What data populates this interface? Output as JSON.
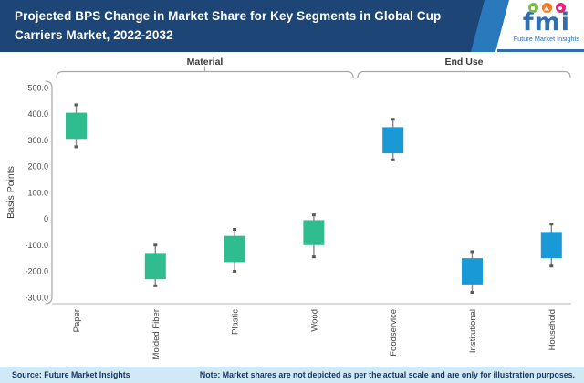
{
  "header": {
    "title_line1": "Projected BPS Change in Market Share for Key Segments in Global Cup",
    "title_line2": "Carriers Market, 2022-2032",
    "bg_color": "#1d4575",
    "accent_stripe_color": "#2b79bd",
    "logo": {
      "text": "fmi",
      "subtitle": "Future Market Insights",
      "text_color": "#2f6db5",
      "dot_colors": [
        "#7ac143",
        "#f47b20",
        "#ec1e79"
      ]
    }
  },
  "chart_data": {
    "type": "boxwhisker",
    "title": "Projected BPS Change in Market Share for Key Segments in Global Cup Carriers Market, 2022-2032",
    "xlabel": "",
    "ylabel": "Basis Points",
    "ylim": [
      -300,
      500
    ],
    "grid": "off",
    "legend": "none",
    "yticks": {
      "values": [
        500,
        400,
        300,
        200,
        100,
        0,
        -100,
        -200,
        -300
      ],
      "labels": [
        "500.0",
        "400.0",
        "300.0",
        "200.0",
        "100.0",
        "0",
        "-100.0",
        "-200.0",
        "-300.0"
      ]
    },
    "groups": [
      {
        "label": "Material",
        "color": "#2fbc8e",
        "categories": [
          "Paper",
          "Molded Fiber",
          "Plastic",
          "Wood"
        ]
      },
      {
        "label": "End Use",
        "color": "#199ad6",
        "categories": [
          "Foodservice",
          "Institutional",
          "Household"
        ]
      }
    ],
    "points": [
      {
        "category": "Paper",
        "group": "Material",
        "low": 275,
        "box_bottom": 305,
        "box_top": 405,
        "high": 435
      },
      {
        "category": "Molded Fiber",
        "group": "Material",
        "low": -255,
        "box_bottom": -230,
        "box_top": -130,
        "high": -100
      },
      {
        "category": "Plastic",
        "group": "Material",
        "low": -200,
        "box_bottom": -165,
        "box_top": -65,
        "high": -40
      },
      {
        "category": "Wood",
        "group": "Material",
        "low": -145,
        "box_bottom": -100,
        "box_top": -5,
        "high": 15
      },
      {
        "category": "Foodservice",
        "group": "End Use",
        "low": 225,
        "box_bottom": 250,
        "box_top": 350,
        "high": 380
      },
      {
        "category": "Institutional",
        "group": "End Use",
        "low": -280,
        "box_bottom": -250,
        "box_top": -150,
        "high": -125
      },
      {
        "category": "Household",
        "group": "End Use",
        "low": -180,
        "box_bottom": -150,
        "box_top": -50,
        "high": -20
      }
    ]
  },
  "footer": {
    "source": "Source: Future Market Insights",
    "note": "Note: Market shares are not depicted as per the actual scale and are only for illustration purposes.",
    "bg_color": "#cfe9f7",
    "text_color": "#17365d"
  }
}
